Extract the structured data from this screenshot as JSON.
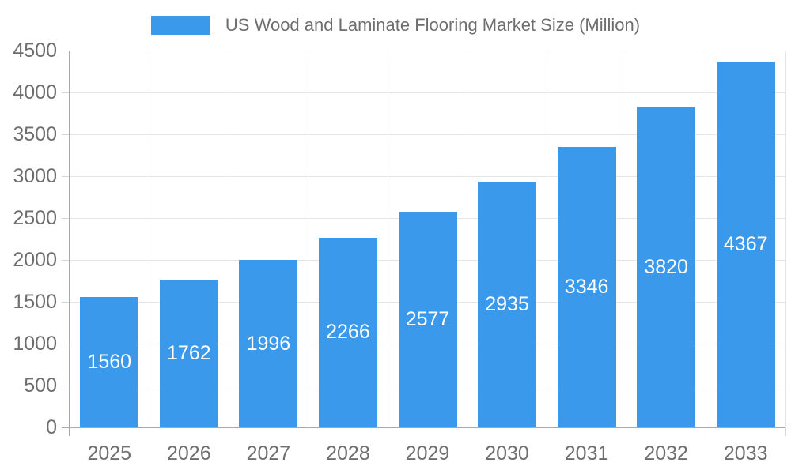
{
  "chart_data": {
    "type": "bar",
    "title": "US Wood and Laminate Flooring Market Size (Million)",
    "categories": [
      "2025",
      "2026",
      "2027",
      "2028",
      "2029",
      "2030",
      "2031",
      "2032",
      "2033"
    ],
    "values": [
      1560,
      1762,
      1996,
      2266,
      2577,
      2935,
      3346,
      3820,
      4367
    ],
    "xlabel": "",
    "ylabel": "",
    "ylim": [
      0,
      4500
    ],
    "y_tick_step": 500,
    "y_ticks": [
      "0",
      "500",
      "1000",
      "1500",
      "2000",
      "2500",
      "3000",
      "3500",
      "4000",
      "4500"
    ],
    "grid": "on",
    "legend_position": "top-center",
    "bar_label_position": "inside-center",
    "colors": {
      "bar": "#3b99ec",
      "grid": "#e5e5e5",
      "axis": "#a8a8a8",
      "tick": "#d6d6d6",
      "label_text": "#6e6e6e",
      "value_text": "#ffffff",
      "background": "#ffffff"
    }
  }
}
